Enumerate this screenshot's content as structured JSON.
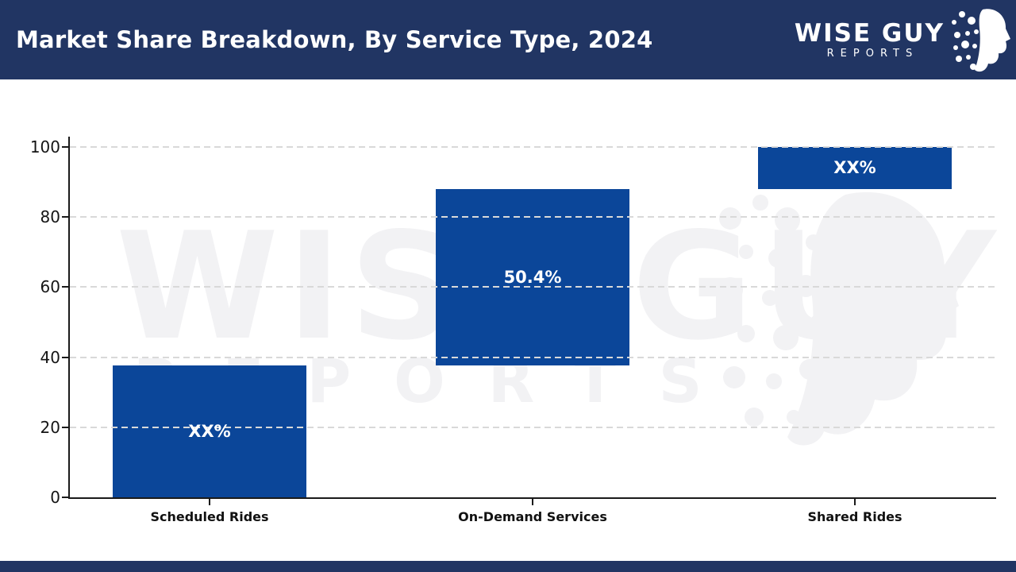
{
  "header": {
    "title": "Market Share Breakdown, By Service Type, 2024",
    "logo": {
      "line1": "WISE GUY",
      "line2": "REPORTS"
    }
  },
  "watermark": {
    "line1": "WISE GUY",
    "line2": "REPORTS"
  },
  "chart_data": {
    "type": "bar",
    "subtype": "waterfall",
    "title": "Market Share Breakdown, By Service Type, 2024",
    "xlabel": "",
    "ylabel": "",
    "categories": [
      "Scheduled Rides",
      "On-Demand Services",
      "Shared Rides"
    ],
    "series": [
      {
        "name": "Scheduled Rides",
        "start": 0,
        "end": 37.6,
        "value": 37.6,
        "label": "XX%"
      },
      {
        "name": "On-Demand Services",
        "start": 37.6,
        "end": 88,
        "value": 50.4,
        "label": "50.4%"
      },
      {
        "name": "Shared Rides",
        "start": 88,
        "end": 100,
        "value": 12,
        "label": "XX%"
      }
    ],
    "ylim": [
      0,
      105
    ],
    "yticks": [
      0,
      20,
      40,
      60,
      80,
      100
    ],
    "ytick_labels": [
      "0",
      "20",
      "40",
      "60",
      "80",
      "100"
    ],
    "grid": "horizontal dashed, drawn above bars",
    "legend": "none"
  },
  "colors": {
    "header_bg": "#213563",
    "footer_bg": "#213563",
    "bar": "#0b4699",
    "bar_label": "#ffffff",
    "grid": "#d9d9d9",
    "axis": "#1a1a1a",
    "tick_label": "#151515",
    "watermark": "#f2f2f4",
    "title_text": "#ffffff"
  }
}
